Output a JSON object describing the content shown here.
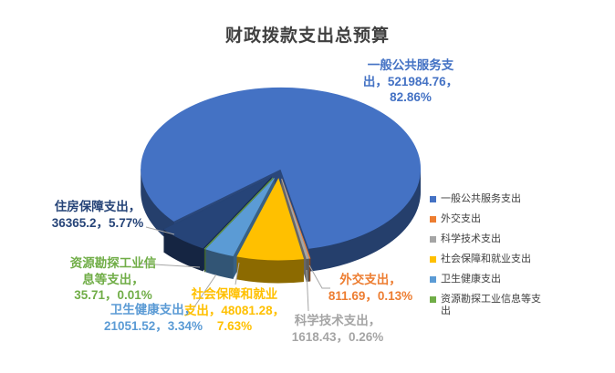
{
  "title": "财政拨款支出总预算",
  "chart_data": {
    "type": "pie",
    "style": "3d-exploded-pie",
    "title": "财政拨款支出总预算",
    "grid": false,
    "legend_position": "right",
    "series": [
      {
        "name": "一般公共服务支出",
        "value": 521984.76,
        "pct": 82.86,
        "color": "#4472C4"
      },
      {
        "name": "外交支出",
        "value": 811.69,
        "pct": 0.13,
        "color": "#ED7D31"
      },
      {
        "name": "科学技术支出",
        "value": 1618.43,
        "pct": 0.26,
        "color": "#A5A5A5"
      },
      {
        "name": "社会保障和就业支出",
        "value": 48081.28,
        "pct": 7.63,
        "color": "#FFC000"
      },
      {
        "name": "卫生健康支出",
        "value": 21051.52,
        "pct": 3.34,
        "color": "#5B9BD5"
      },
      {
        "name": "资源勘探工业信息等支出",
        "value": 35.71,
        "pct": 0.01,
        "color": "#70AD47"
      },
      {
        "name": "住房保障支出",
        "value": 36365.2,
        "pct": 5.77,
        "color": "#264478"
      }
    ],
    "legend": [
      "一般公共服务支出",
      "外交支出",
      "科学技术支出",
      "社会保障和就业支出",
      "卫生健康支出",
      "资源勘探工业信息等支出"
    ]
  },
  "data_labels": [
    {
      "color": "#4472C4",
      "lines": [
        "一般公共服务支",
        "出，521984.76，",
        "82.86%"
      ]
    },
    {
      "color": "#ED7D31",
      "lines": [
        "外交支出，",
        "811.69，0.13%"
      ]
    },
    {
      "color": "#A5A5A5",
      "lines": [
        "科学技术支出，",
        "1618.43，0.26%"
      ]
    },
    {
      "color": "#FFC000",
      "lines": [
        "社会保障和就业",
        "支出，48081.28，",
        "7.63%"
      ]
    },
    {
      "color": "#5B9BD5",
      "lines": [
        "卫生健康支出，",
        "21051.52，3.34%"
      ]
    },
    {
      "color": "#70AD47",
      "lines": [
        "资源勘探工业信",
        "息等支出，",
        "35.71，0.01%"
      ]
    },
    {
      "color": "#264478",
      "lines": [
        "住房保障支出，",
        "36365.2，5.77%"
      ]
    }
  ]
}
